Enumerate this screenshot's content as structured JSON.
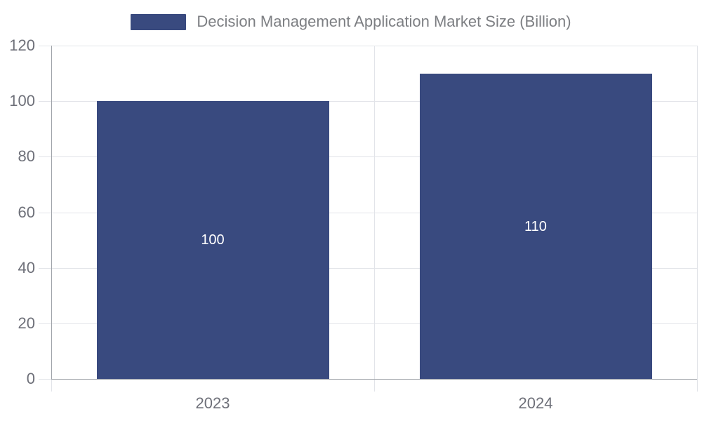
{
  "legend": {
    "label": "Decision Management Application Market Size (Billion)"
  },
  "chart_data": {
    "type": "bar",
    "title": "Decision Management Application Market Size (Billion)",
    "categories": [
      "2023",
      "2024"
    ],
    "values": [
      100,
      110
    ],
    "value_labels": [
      "100",
      "110"
    ],
    "xlabel": "",
    "ylabel": "",
    "ylim": [
      0,
      120
    ],
    "yticks": [
      0,
      20,
      40,
      60,
      80,
      100,
      120
    ],
    "grid": true,
    "legend_position": "top",
    "bar_color": "#394A7F",
    "value_label_color": "#FFFFFF",
    "axis_label_color": "#6E7079",
    "grid_color": "#E2E4E9",
    "axis_line_color": "#9FA3A9"
  }
}
